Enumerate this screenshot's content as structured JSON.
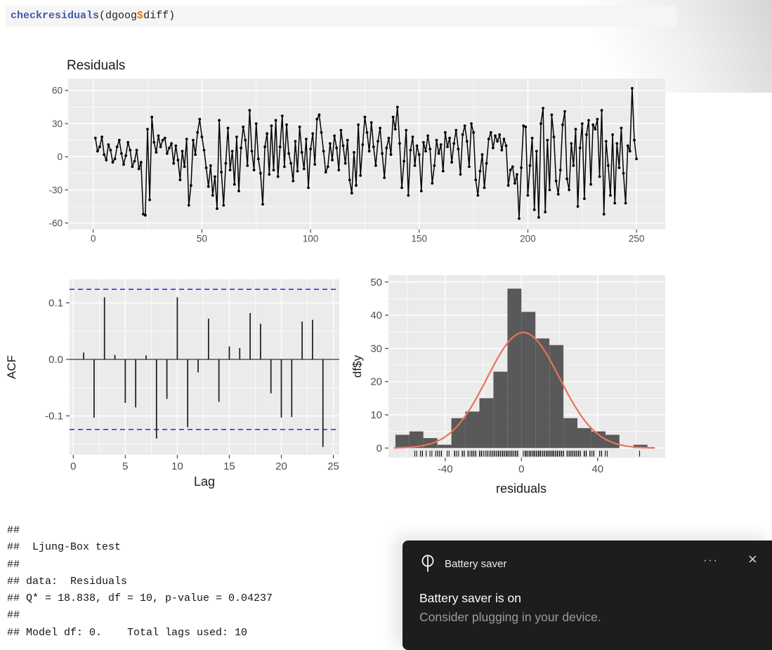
{
  "code_block": {
    "tokens": [
      {
        "text": "checkresiduals",
        "kind": "function"
      },
      {
        "text": "(dgoog",
        "kind": "plain"
      },
      {
        "text": "$",
        "kind": "operator"
      },
      {
        "text": "diff)",
        "kind": "plain"
      }
    ],
    "colors": {
      "function": "#4758AB",
      "operator": "#DE8114",
      "plain": "#1F1F1F",
      "bg": "#F5F5F5"
    }
  },
  "theme": {
    "panel_bg": "#EBEBEB",
    "grid_color": "#FFFFFF",
    "tick_label_color": "#4D4D4D",
    "tick_mark_color": "#333333",
    "axis_title_color": "#1A1A1A"
  },
  "chart_data": [
    {
      "id": "residuals",
      "type": "line",
      "title": "Residuals",
      "xlabel": "",
      "ylabel": "",
      "x_start": 1,
      "values": [
        17,
        5,
        9,
        18,
        2,
        -3,
        11,
        6,
        -5,
        -2,
        9,
        15,
        3,
        -7,
        1,
        13,
        6,
        -9,
        -4,
        6,
        -11,
        -5,
        -52,
        -53,
        25,
        -39,
        36,
        13,
        4,
        19,
        9,
        15,
        17,
        3,
        8,
        12,
        -6,
        10,
        -3,
        -21,
        5,
        -9,
        16,
        -44,
        -26,
        15,
        2,
        22,
        34,
        18,
        6,
        -10,
        -27,
        -8,
        -35,
        -18,
        -47,
        33,
        -14,
        -44,
        -6,
        26,
        -12,
        5,
        -25,
        18,
        -31,
        8,
        27,
        15,
        -8,
        42,
        5,
        -12,
        30,
        -2,
        -15,
        -43,
        9,
        21,
        -16,
        28,
        -12,
        33,
        -18,
        9,
        37,
        -9,
        29,
        3,
        -6,
        -22,
        14,
        -13,
        27,
        4,
        -11,
        16,
        -28,
        7,
        21,
        -7,
        34,
        38,
        22,
        5,
        -14,
        -9,
        12,
        -3,
        19,
        8,
        -12,
        24,
        10,
        -6,
        15,
        -21,
        -33,
        4,
        -26,
        29,
        -17,
        11,
        36,
        22,
        5,
        31,
        9,
        -8,
        14,
        26,
        3,
        -19,
        8,
        17,
        2,
        36,
        25,
        45,
        12,
        -28,
        -4,
        24,
        -35,
        6,
        18,
        -8,
        10,
        2,
        -31,
        13,
        5,
        19,
        7,
        -24,
        -8,
        15,
        3,
        11,
        -13,
        22,
        9,
        17,
        -5,
        12,
        24,
        7,
        -16,
        20,
        28,
        14,
        -9,
        30,
        22,
        -21,
        -35,
        -13,
        2,
        -28,
        -6,
        16,
        22,
        8,
        19,
        14,
        20,
        6,
        16,
        10,
        -26,
        -12,
        -9,
        -24,
        -16,
        -56,
        -10,
        28,
        27,
        -35,
        -8,
        17,
        -48,
        5,
        -55,
        30,
        44,
        -50,
        15,
        -30,
        38,
        18,
        -22,
        -34,
        -12,
        29,
        41,
        -20,
        -30,
        12,
        -8,
        25,
        -45,
        8,
        30,
        -38,
        20,
        33,
        -25,
        29,
        25,
        34,
        -18,
        42,
        -52,
        14,
        -8,
        -35,
        20,
        -42,
        12,
        -10,
        26,
        -15,
        -42,
        10,
        5,
        62,
        15,
        -2
      ],
      "x_ticks": [
        0,
        50,
        100,
        150,
        200,
        250
      ],
      "y_ticks": [
        60,
        30,
        0,
        -30,
        -60
      ],
      "xlim": [
        -11,
        263
      ],
      "ylim": [
        -65,
        67
      ],
      "grid": true,
      "legend": false,
      "line_color": "#000000",
      "point_color": "#000000"
    },
    {
      "id": "acf",
      "type": "bar",
      "title": "",
      "xlabel": "Lag",
      "ylabel": "ACF",
      "lag_start": 1,
      "values": [
        0.012,
        -0.103,
        0.11,
        0.008,
        -0.077,
        -0.085,
        0.007,
        -0.14,
        -0.07,
        0.11,
        -0.12,
        -0.023,
        0.072,
        -0.075,
        0.023,
        0.02,
        0.082,
        0.063,
        -0.06,
        -0.103,
        -0.102,
        0.067,
        0.07,
        -0.155
      ],
      "confidence_bound": 0.124,
      "confidence_color": "#3333FF",
      "x_ticks": [
        0,
        5,
        10,
        15,
        20,
        25
      ],
      "y_ticks": [
        0.1,
        0.0,
        -0.1
      ],
      "xlim": [
        -0.4,
        25.6
      ],
      "ylim": [
        -0.17,
        0.142
      ],
      "grid": true,
      "legend": false,
      "bar_color": "#1A1A1A"
    },
    {
      "id": "histogram",
      "type": "histogram",
      "title": "",
      "xlabel": "residuals",
      "ylabel": "df$y",
      "bin_start": -66.15,
      "bin_width": 7.35,
      "counts": [
        4,
        5,
        3,
        1,
        9,
        11,
        15,
        23,
        48,
        41,
        33,
        31,
        9,
        6,
        5,
        4,
        0,
        1
      ],
      "density_curve": {
        "shape": "normal",
        "mean": 1,
        "sd": 19,
        "peak": 34.8,
        "color": "#E8735B"
      },
      "rug_source": "residuals",
      "x_ticks": [
        -40,
        0,
        40
      ],
      "y_ticks": [
        0,
        10,
        20,
        30,
        40,
        50
      ],
      "xlim": [
        -70,
        76
      ],
      "ylim": [
        0,
        52
      ],
      "grid": true,
      "legend": false,
      "bar_color": "#595959"
    }
  ],
  "console_output": {
    "lines": [
      "## ",
      "##  Ljung-Box test",
      "## ",
      "## data:  Residuals",
      "## Q* = 18.838, df = 10, p-value = 0.04237",
      "## ",
      "## Model df: 0.    Total lags used: 10"
    ]
  },
  "notification": {
    "title": "Battery saver",
    "heading": "Battery saver is on",
    "body": "Consider plugging in your device.",
    "more_label": "···",
    "close_label": "×",
    "bg": "#1D1D1D"
  }
}
